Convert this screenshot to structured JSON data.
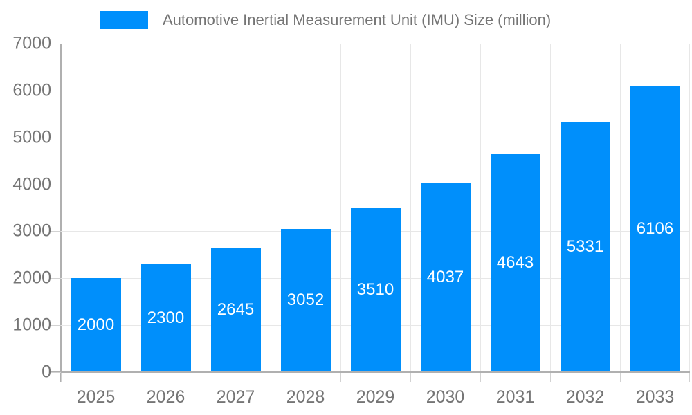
{
  "chart": {
    "background": "#ffffff",
    "legend": {
      "label": "Automotive Inertial Measurement Unit (IMU) Size (million)"
    },
    "colors": {
      "bar": "#008FFB",
      "bar_label": "#ffffff",
      "grid": "#e7e7e7",
      "axis_line": "#b0b0b0",
      "tick": "#d2d2d2",
      "axis_text": "#757575",
      "legend_text": "#757575"
    }
  },
  "chart_data": {
    "type": "bar",
    "title": "Automotive Inertial Measurement Unit (IMU) Size (million)",
    "categories": [
      "2025",
      "2026",
      "2027",
      "2028",
      "2029",
      "2030",
      "2031",
      "2032",
      "2033"
    ],
    "values": [
      2000,
      2300,
      2645,
      3052,
      3510,
      4037,
      4643,
      5331,
      6106
    ],
    "xlabel": "",
    "ylabel": "",
    "ylim": [
      0,
      7000
    ],
    "ytick_step": 1000,
    "ytick_labels": [
      "0",
      "1000",
      "2000",
      "3000",
      "4000",
      "5000",
      "6000",
      "7000"
    ],
    "grid": "on",
    "legend_position": "top-left",
    "data_labels": "inside-center"
  }
}
